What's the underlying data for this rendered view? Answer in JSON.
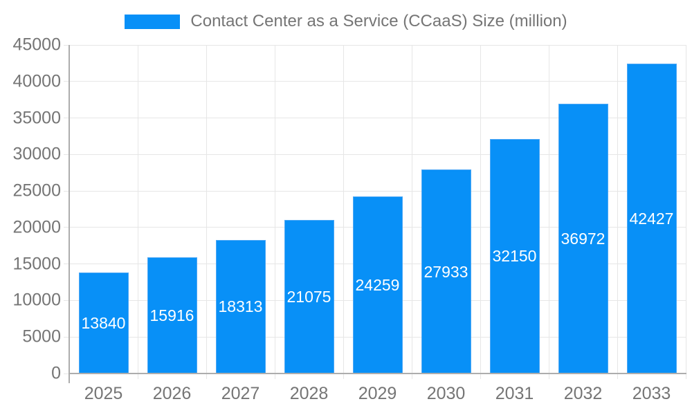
{
  "page": {
    "background_color": "#ffffff"
  },
  "legend": {
    "label": "Contact Center as a Service (CCaaS) Size (million)",
    "position": "top"
  },
  "chart_data": {
    "type": "bar",
    "title": "Contact Center as a Service (CCaaS) Size (million)",
    "categories": [
      "2025",
      "2026",
      "2027",
      "2028",
      "2029",
      "2030",
      "2031",
      "2032",
      "2033"
    ],
    "values": [
      13840,
      15916,
      18313,
      21075,
      24259,
      27933,
      32150,
      36972,
      42427
    ],
    "xlabel": "",
    "ylabel": "",
    "ylim": [
      0,
      45000
    ],
    "y_ticks": [
      0,
      5000,
      10000,
      15000,
      20000,
      25000,
      30000,
      35000,
      40000,
      45000
    ],
    "grid": true,
    "legend_position": "top",
    "value_labels": "inside-bar-centered",
    "colors": {
      "bar": "#0890F7",
      "bar_edge": "#4FA8F5",
      "value_label": "#ffffff",
      "axis_text": "#757575",
      "gridline": "#e6e6e6",
      "axis_line": "#adadad"
    }
  }
}
